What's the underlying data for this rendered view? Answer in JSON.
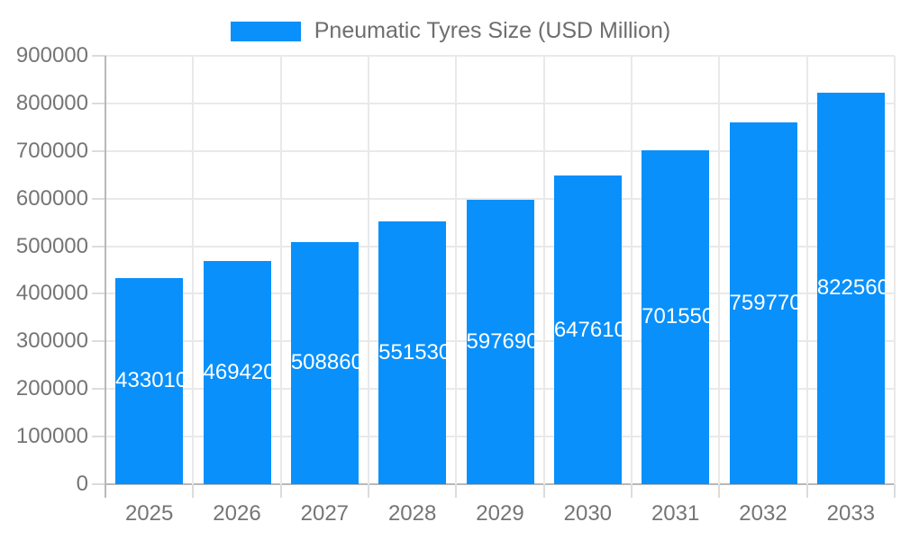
{
  "chart_data": {
    "type": "bar",
    "title": "",
    "xlabel": "",
    "ylabel": "",
    "categories": [
      "2025",
      "2026",
      "2027",
      "2028",
      "2029",
      "2030",
      "2031",
      "2032",
      "2033"
    ],
    "series": [
      {
        "name": "Pneumatic Tyres Size (USD Million)",
        "values": [
          433010,
          469420,
          508860,
          551530,
          597690,
          647610,
          701550,
          759770,
          822560
        ]
      }
    ],
    "value_labels": [
      433010,
      469420,
      508860,
      551530,
      597690,
      647610,
      701550,
      759770,
      822560
    ],
    "ylim": [
      0,
      900000
    ],
    "ytick_step": 100000,
    "ytick_labels": [
      "0",
      "100000",
      "200000",
      "300000",
      "400000",
      "500000",
      "600000",
      "700000",
      "800000",
      "900000"
    ],
    "grid": true,
    "legend_position": "top"
  },
  "legend": {
    "label": "Pneumatic Tyres Size (USD Million)"
  },
  "colors": {
    "bar_fill": "#0990fb",
    "value_label_text": "#ffffff",
    "axis_label_text": "#757575",
    "legend_text": "#6e6e6e",
    "gridline": "#e9e9e9",
    "axis_line": "#b8b8b8",
    "tick_mark": "#dcdcdc",
    "background": "#ffffff"
  }
}
